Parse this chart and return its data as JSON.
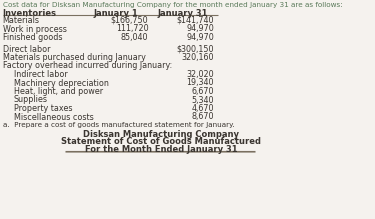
{
  "title_line": "Cost data for Disksan Manufacturing Company for the month ended January 31 are as follows:",
  "header": [
    "Inventories",
    "January 1",
    "January 31"
  ],
  "inventory_rows": [
    [
      "Materials",
      "$166,750",
      "$141,740"
    ],
    [
      "Work in process",
      "111,720",
      "94,970"
    ],
    [
      "Finished goods",
      "85,040",
      "94,970"
    ]
  ],
  "other_rows": [
    [
      "Direct labor",
      "$300,150"
    ],
    [
      "Materials purchased during January",
      "320,160"
    ]
  ],
  "overhead_header": "Factory overhead incurred during January:",
  "overhead_rows": [
    [
      "Indirect labor",
      "32,020"
    ],
    [
      "Machinery depreciation",
      "19,340"
    ],
    [
      "Heat, light, and power",
      "6,670"
    ],
    [
      "Supplies",
      "5,340"
    ],
    [
      "Property taxes",
      "4,670"
    ],
    [
      "Miscellaneous costs",
      "8,670"
    ]
  ],
  "footer_line": "a.  Prepare a cost of goods manufactured statement for January.",
  "bottom_lines": [
    "Disksan Manufacturing Company",
    "Statement of Cost of Goods Manufactured",
    "For the Month Ended January 31"
  ],
  "bg_color": "#f5f2ee",
  "text_color": "#3a3530",
  "title_color": "#5a7a5a",
  "line_color": "#7a7060"
}
